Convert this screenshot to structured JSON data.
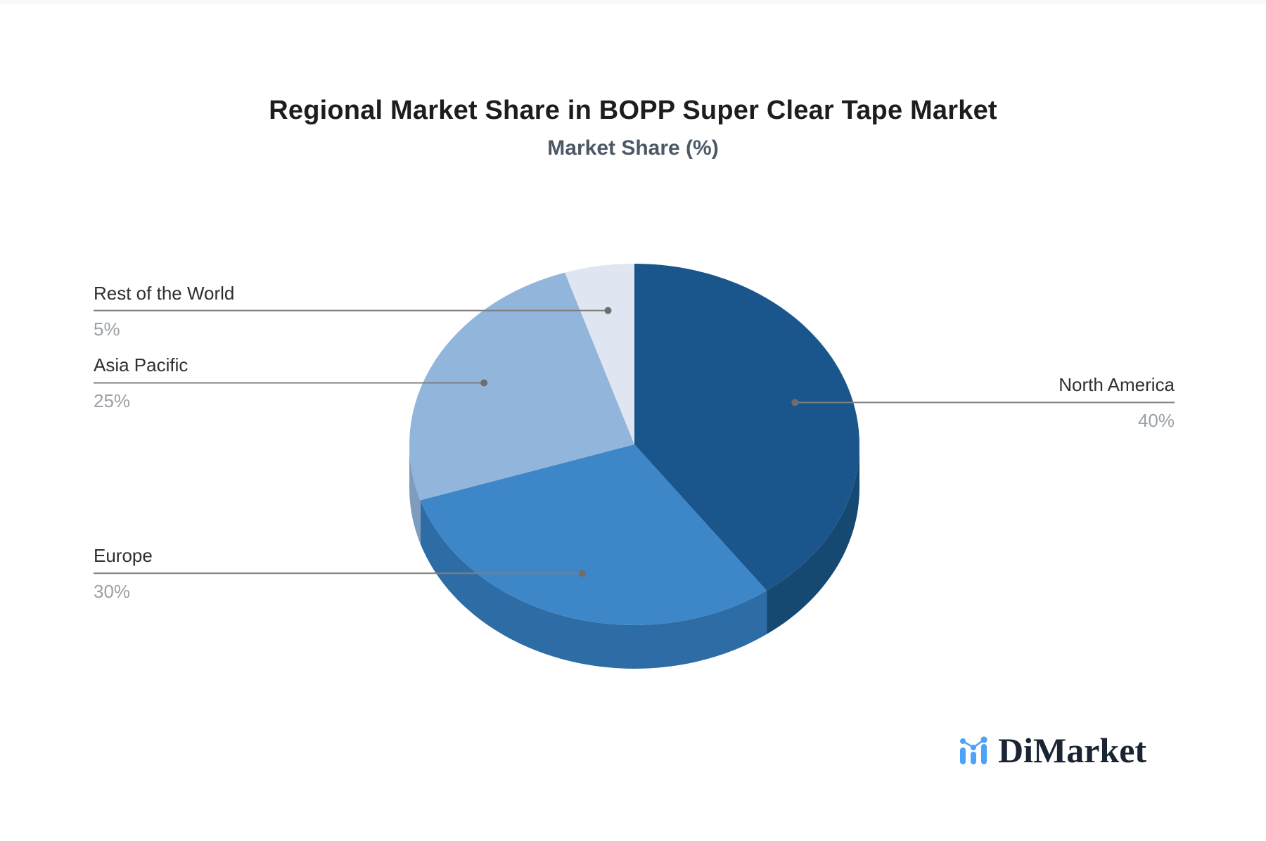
{
  "header": {
    "title": "Regional Market Share in BOPP Super Clear Tape Market",
    "subtitle": "Market Share (%)"
  },
  "branding": {
    "name": "DiMarket",
    "icon": "bar-line-chart-icon",
    "icon_color": "#4DA3F7",
    "text_color": "#1A2433"
  },
  "chart_data": {
    "type": "pie",
    "title": "Regional Market Share in BOPP Super Clear Tape Market",
    "subtitle": "Market Share (%)",
    "unit": "%",
    "effect": "3d-extruded",
    "direction": "clockwise",
    "start_angle_deg": 0,
    "legend": false,
    "labels": "outside-leader-lines",
    "leader_line_color": "#7F7F7F",
    "leader_dot_color": "#6E6E6E",
    "label_text_color": "#2F2F2F",
    "value_text_color": "#9AA0A6",
    "slices": [
      {
        "label": "North America",
        "value": 40,
        "display": "40%",
        "color": "#1A568C",
        "side_color": "#154972",
        "label_side": "right"
      },
      {
        "label": "Europe",
        "value": 30,
        "display": "30%",
        "color": "#3D87C9",
        "side_color": "#2D6CA4",
        "label_side": "left"
      },
      {
        "label": "Asia Pacific",
        "value": 25,
        "display": "25%",
        "color": "#92B5DC",
        "side_color": "#7F9CBD",
        "label_side": "left"
      },
      {
        "label": "Rest of the World",
        "value": 5,
        "display": "5%",
        "color": "#DFE6F1",
        "side_color": "#C3CEDE",
        "label_side": "left"
      }
    ]
  }
}
